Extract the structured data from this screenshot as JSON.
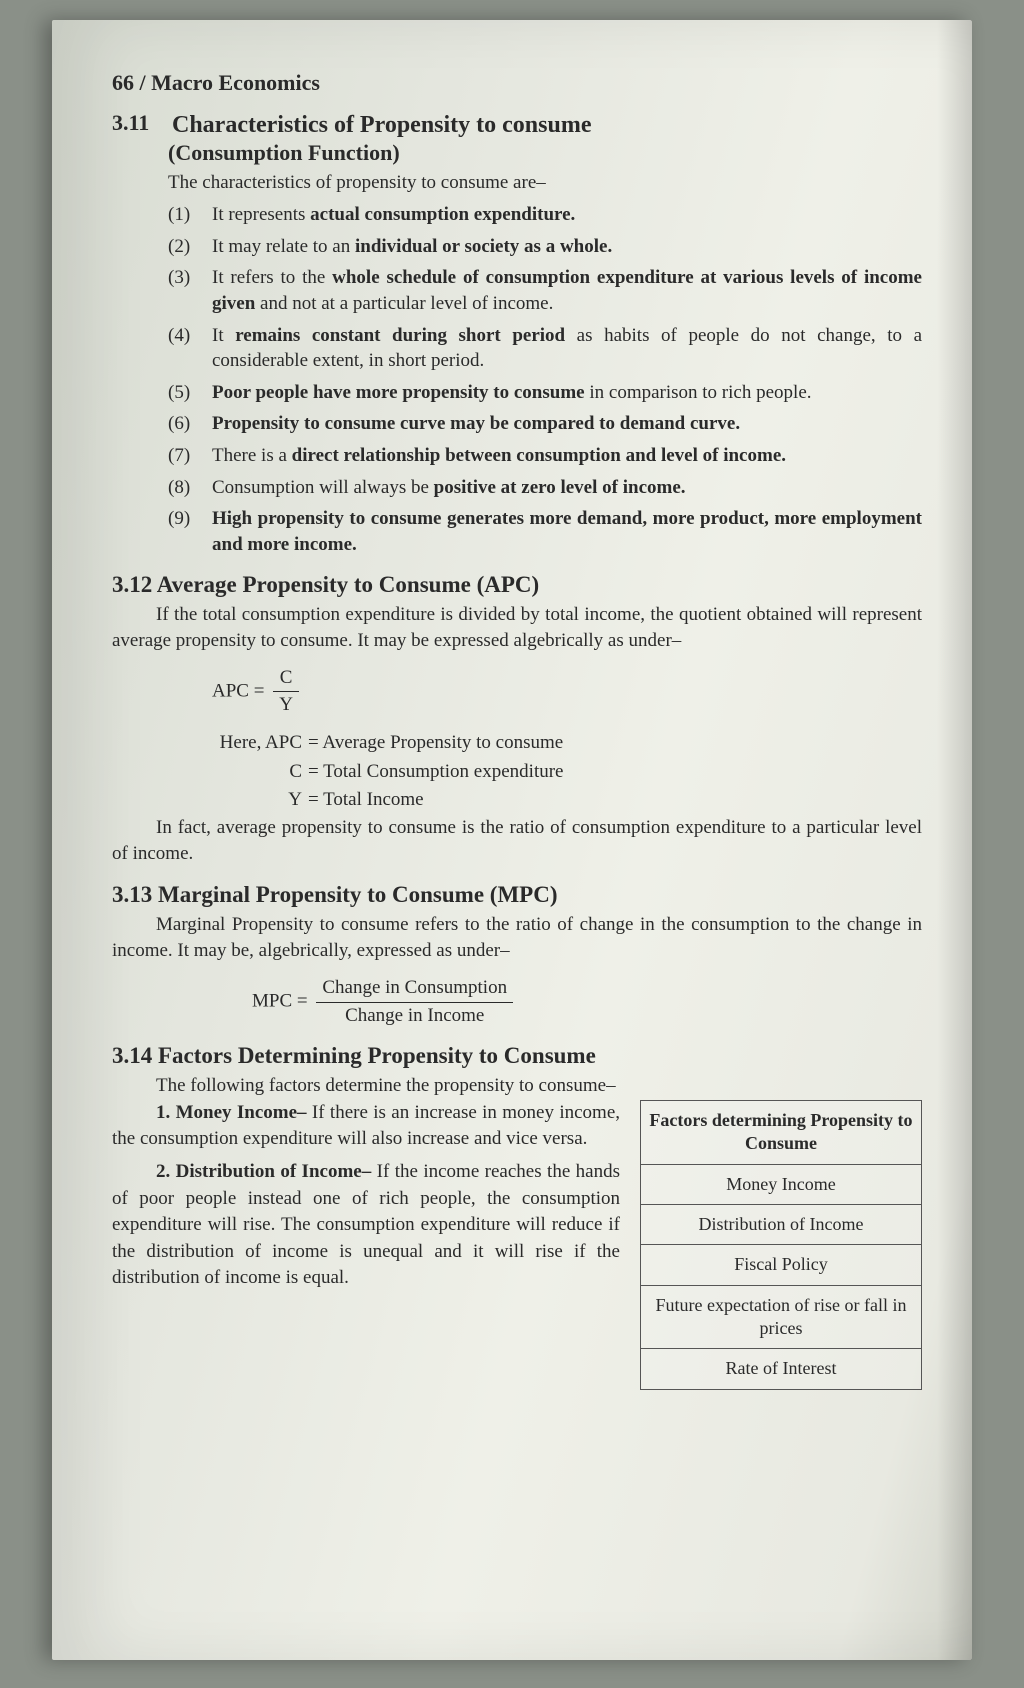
{
  "header": "66 / Macro Economics",
  "sec311": {
    "num": "3.11",
    "title": "Characteristics of Propensity to consume",
    "subtitle": "(Consumption Function)",
    "lead": "The characteristics of propensity to consume are–",
    "items": [
      {
        "n": "(1)",
        "pre": "It represents ",
        "b": "actual consumption expenditure.",
        "post": ""
      },
      {
        "n": "(2)",
        "pre": "It may relate to an ",
        "b": "individual or society as a whole.",
        "post": ""
      },
      {
        "n": "(3)",
        "pre": "It refers to the ",
        "b": "whole schedule of consumption expenditure at various levels of income given",
        "post": " and not at a particular level of income."
      },
      {
        "n": "(4)",
        "pre": "It ",
        "b": "remains constant during short period",
        "post": " as habits of people do not change, to a considerable extent, in short period."
      },
      {
        "n": "(5)",
        "pre": "",
        "b": "Poor people have more propensity to consume",
        "post": " in comparison to rich people."
      },
      {
        "n": "(6)",
        "pre": "",
        "b": "Propensity to consume curve may be compared to demand curve.",
        "post": ""
      },
      {
        "n": "(7)",
        "pre": "There is a ",
        "b": "direct relationship between consumption and level of income.",
        "post": ""
      },
      {
        "n": "(8)",
        "pre": "Consumption will always be ",
        "b": "positive at zero level of income.",
        "post": ""
      },
      {
        "n": "(9)",
        "pre": "",
        "b": "High propensity to consume generates more demand, more product, more employment and more income.",
        "post": ""
      }
    ]
  },
  "sec312": {
    "title": "3.12 Average Propensity to Consume (APC)",
    "p1": "If the total consumption expenditure is divided by total income, the quotient obtained will represent average propensity to consume. It may be expressed algebrically as under–",
    "formula": {
      "lhs": "APC =",
      "top": "C",
      "bot": "Y"
    },
    "defs": [
      {
        "l": "Here,   APC",
        "r": "= Average Propensity to consume"
      },
      {
        "l": "C",
        "r": "= Total Consumption expenditure"
      },
      {
        "l": "Y",
        "r": "= Total Income"
      }
    ],
    "p2": "In fact, average propensity to consume is the ratio of consumption expenditure to a particular level of income."
  },
  "sec313": {
    "title": "3.13 Marginal Propensity to Consume (MPC)",
    "p1": "Marginal Propensity to consume refers to the ratio of change in the consumption to the change in income. It may be, algebrically, expressed as under–",
    "formula": {
      "lhs": "MPC =",
      "top": "Change in Consumption",
      "bot": "Change in Income"
    }
  },
  "sec314": {
    "title": "3.14 Factors Determining Propensity to Consume",
    "lead": "The following factors determine the propensity to consume–",
    "f1": {
      "label": "1. Money Income–",
      "text": "If there is an increase in money income, the consumption expenditure will also increase and vice versa."
    },
    "f2": {
      "label": "2. Distribution of Income–",
      "text": "If the income reaches the hands of poor people instead one of rich people, the consumption expenditure will rise. The consumption expenditure will reduce if the distribution of income is unequal and it will rise if the distribution of income is equal."
    },
    "box": {
      "head": "Factors determining Propensity to Consume",
      "rows": [
        "Money Income",
        "Distribution of Income",
        "Fiscal Policy",
        "Future expectation of rise or fall in prices",
        "Rate of Interest"
      ]
    }
  }
}
